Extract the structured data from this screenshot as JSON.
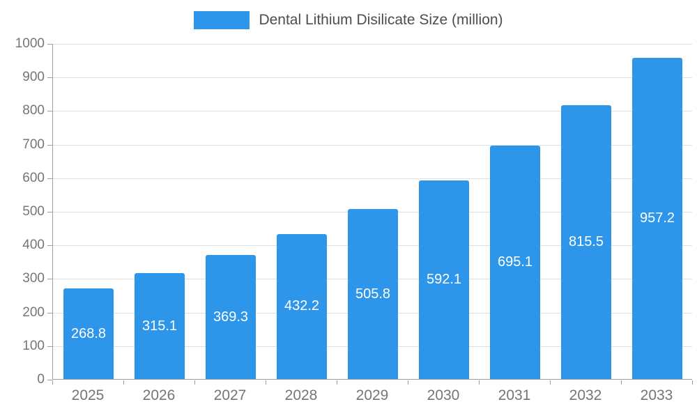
{
  "chart_data": {
    "type": "bar",
    "title": "Dental Lithium Disilicate Size (million)",
    "categories": [
      "2025",
      "2026",
      "2027",
      "2028",
      "2029",
      "2030",
      "2031",
      "2032",
      "2033"
    ],
    "values": [
      268.8,
      315.1,
      369.3,
      432.2,
      505.8,
      592.1,
      695.1,
      815.5,
      957.2
    ],
    "value_labels": [
      "268.8",
      "315.1",
      "369.3",
      "432.2",
      "505.8",
      "592.1",
      "695.1",
      "815.5",
      "957.2"
    ],
    "xlabel": "",
    "ylabel": "",
    "ylim": [
      0,
      1000
    ],
    "yticks": [
      0,
      100,
      200,
      300,
      400,
      500,
      600,
      700,
      800,
      900,
      1000
    ],
    "grid": true,
    "legend_position": "top",
    "colors": {
      "bar": "#2E96EA",
      "bar_label": "#FFFFFF",
      "axis_text": "#757575",
      "title_text": "#4D4D4D",
      "grid_line": "#E0E0E0",
      "axis_line": "#9E9E9E",
      "background": "#FFFFFF"
    }
  }
}
